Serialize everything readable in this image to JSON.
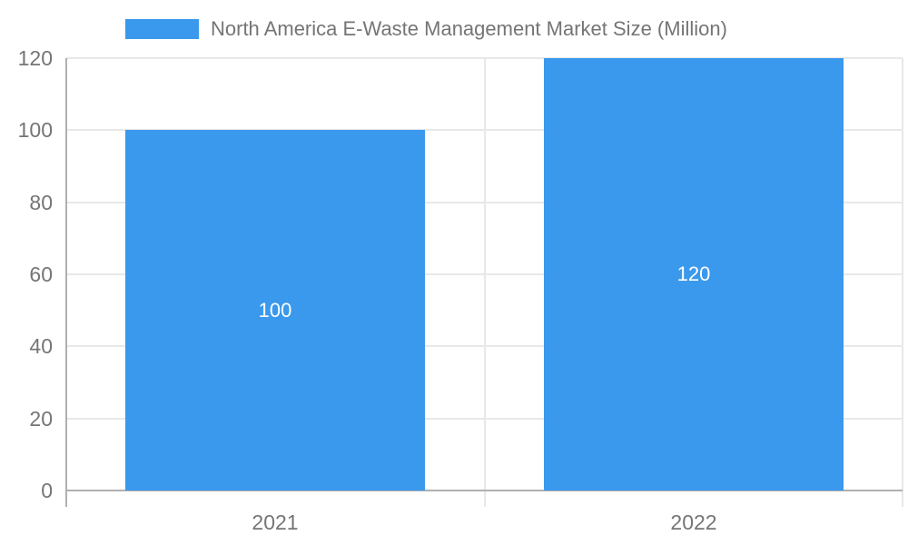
{
  "legend": {
    "title": "North America E-Waste Management Market Size (Million)"
  },
  "chart_data": {
    "type": "bar",
    "title": "North America E-Waste Management Market Size (Million)",
    "categories": [
      "2021",
      "2022"
    ],
    "values": [
      100,
      120
    ],
    "data_labels": [
      "100",
      "120"
    ],
    "xlabel": "",
    "ylabel": "",
    "ylim": [
      0,
      120
    ],
    "yticks": [
      0,
      20,
      40,
      60,
      80,
      100,
      120
    ],
    "grid": true,
    "legend_position": "top",
    "colors": {
      "bar": "#3A99EC",
      "grid": "#E8E8E8",
      "axis": "#B0B0B0",
      "tick_text": "#757575",
      "bar_label_text": "#FFFFFF"
    }
  }
}
